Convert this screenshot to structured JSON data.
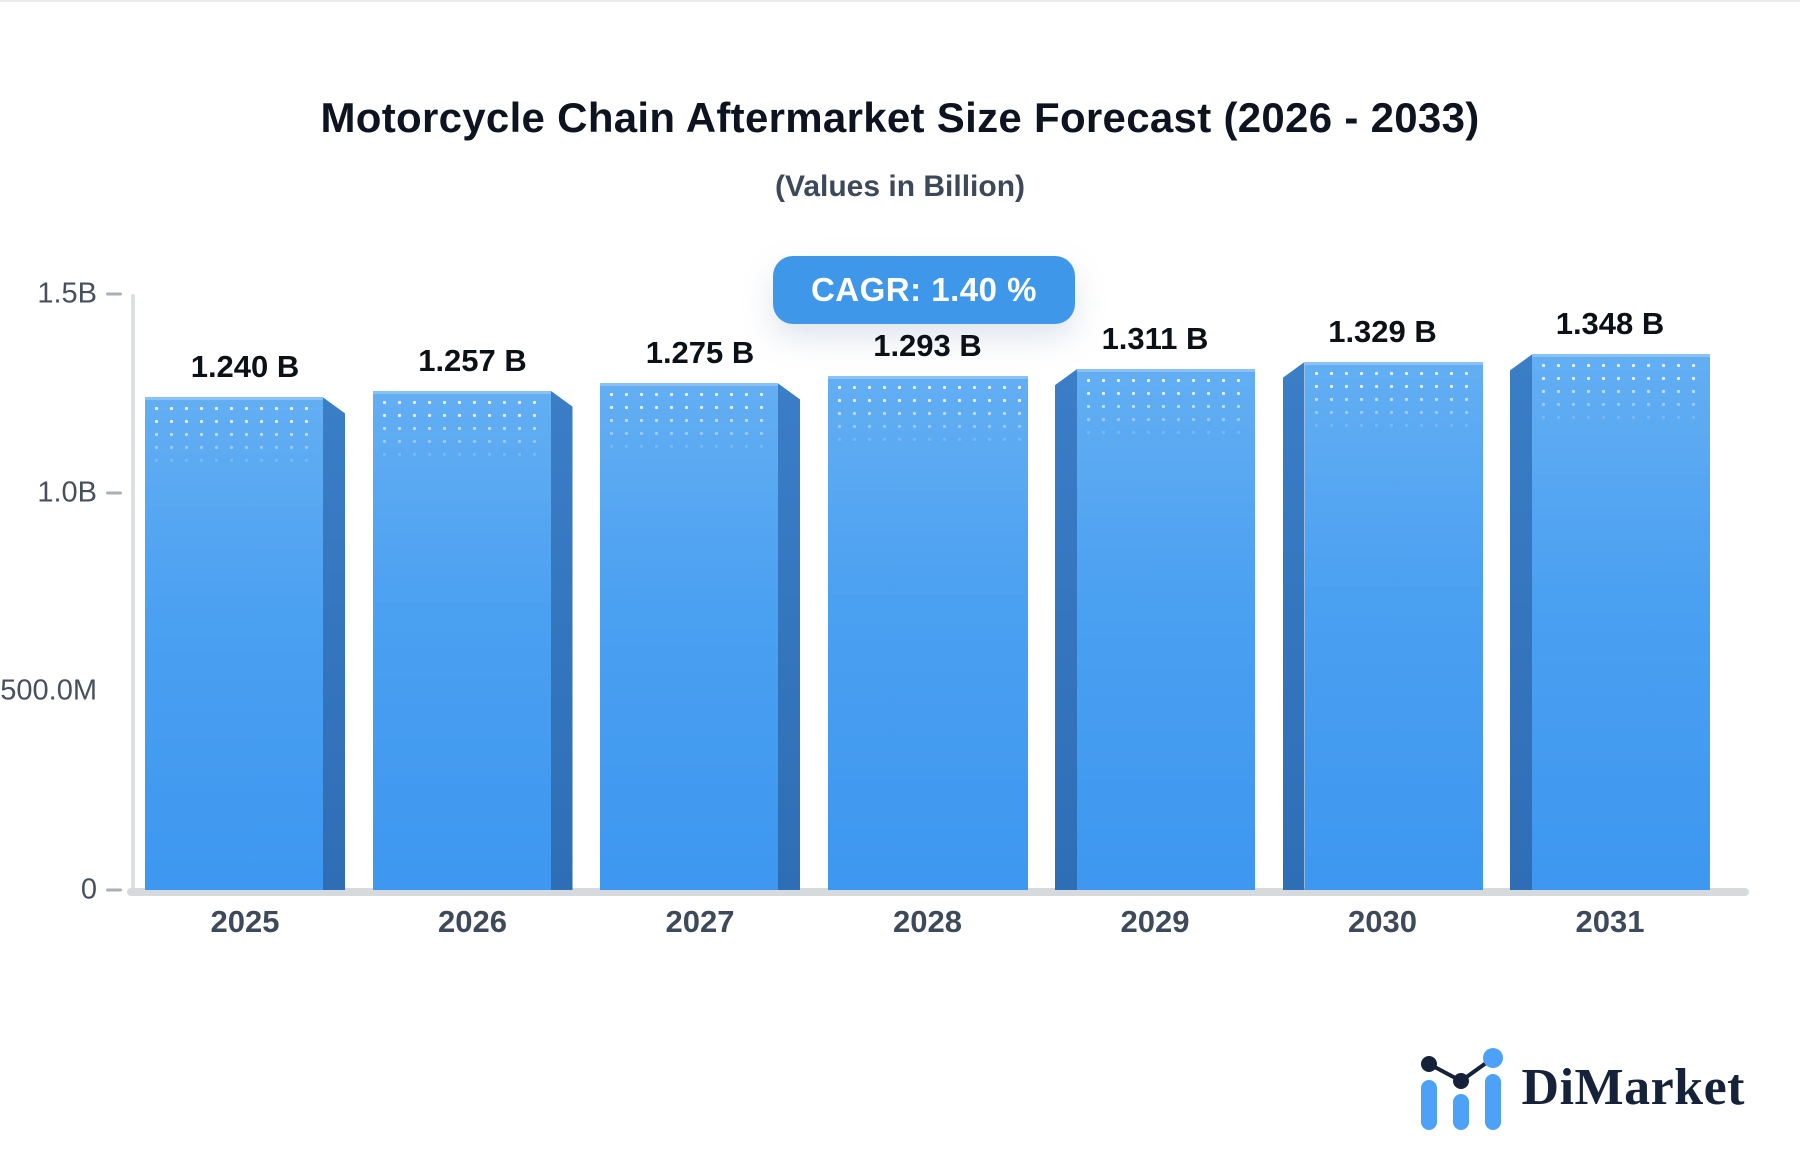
{
  "header": {
    "title": "Motorcycle Chain Aftermarket Size Forecast (2026 - 2033)",
    "subtitle": "(Values in Billion)",
    "cagr_label": "CAGR: 1.40 %"
  },
  "footer": {
    "logo_text": "DiMarket"
  },
  "colors": {
    "bar_face_top": "#63aef3",
    "bar_face_bottom": "#3e97f0",
    "bar_side": "#2e6eb5",
    "badge_bg": "#3f97ea",
    "baseline": "#d7dadd",
    "axis_label": "#46505e",
    "value_label": "#0c1118",
    "title_color": "#0d1420",
    "subtitle_color": "#3d4859",
    "logo_navy": "#152239",
    "logo_blue": "#4da2f7"
  },
  "chart_data": {
    "type": "bar",
    "title": "Motorcycle Chain Aftermarket Size Forecast (2026 - 2033)",
    "subtitle": "(Values in Billion)",
    "cagr": "1.40 %",
    "categories": [
      "2025",
      "2026",
      "2027",
      "2028",
      "2029",
      "2030",
      "2031"
    ],
    "values": [
      1.24,
      1.257,
      1.275,
      1.293,
      1.311,
      1.329,
      1.348
    ],
    "value_labels": [
      "1.240 B",
      "1.257 B",
      "1.275 B",
      "1.293 B",
      "1.311 B",
      "1.329 B",
      "1.348 B"
    ],
    "unit": "Billion",
    "xlabel": "",
    "ylabel": "",
    "ylim": [
      0,
      1.5
    ],
    "yticks": [
      {
        "label": "1.5B",
        "value": 1.5,
        "dash": true
      },
      {
        "label": "1.0B",
        "value": 1.0,
        "dash": true
      },
      {
        "label": "500.0M",
        "value": 0.5,
        "dash": false
      },
      {
        "label": "0",
        "value": 0.0,
        "dash": true
      }
    ],
    "grid": false,
    "legend": "none"
  }
}
